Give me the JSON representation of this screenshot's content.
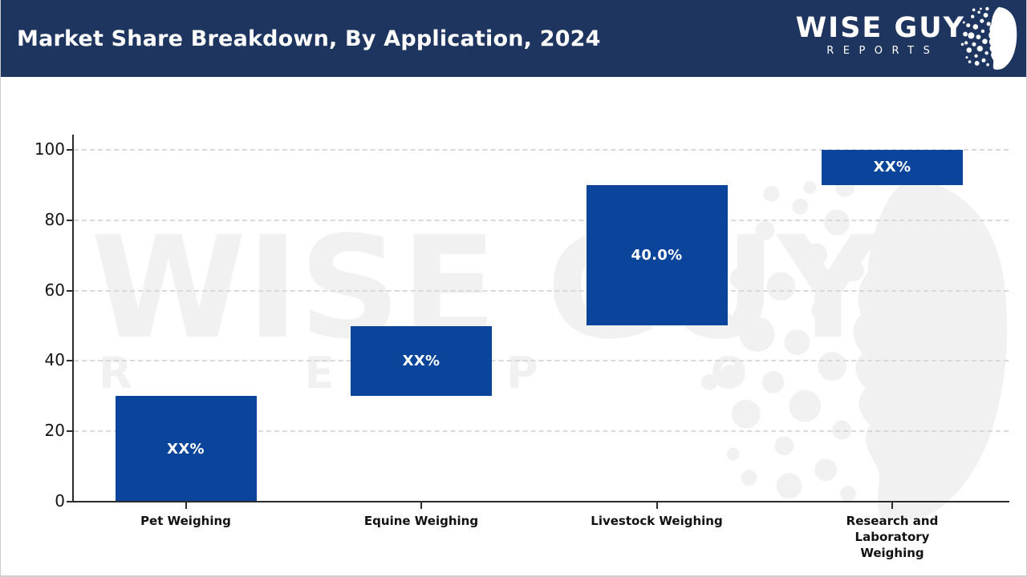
{
  "header": {
    "title": "Market Share Breakdown, By Application, 2024",
    "bg_color": "#1e355f",
    "logo": {
      "line1": "WISE GUY",
      "line2": "REPORTS"
    }
  },
  "watermark": {
    "line1": "WISE GUY",
    "line2": "R E P O R T S"
  },
  "chart_data": {
    "type": "bar",
    "variant": "floating-waterfall",
    "title": "Market Share Breakdown, By Application, 2024",
    "categories": [
      "Pet Weighing",
      "Equine Weighing",
      "Livestock Weighing",
      "Research and Laboratory Weighing"
    ],
    "bars": [
      {
        "category": "Pet Weighing",
        "start": 0,
        "end": 30,
        "label": "XX%"
      },
      {
        "category": "Equine Weighing",
        "start": 30,
        "end": 50,
        "label": "XX%"
      },
      {
        "category": "Livestock Weighing",
        "start": 50,
        "end": 90,
        "label": "40.0%"
      },
      {
        "category": "Research and Laboratory Weighing",
        "start": 90,
        "end": 100,
        "label": "XX%"
      }
    ],
    "ylim": [
      0,
      100
    ],
    "yticks": [
      0,
      20,
      40,
      60,
      80,
      100
    ],
    "xlabel": "",
    "ylabel": "",
    "legend": "none",
    "grid": "horizontal-dashed",
    "bar_color": "#0b459b",
    "bar_label_color": "#ffffff",
    "grid_color": "#d9d9d9",
    "axis_color": "#2b2b2b"
  }
}
